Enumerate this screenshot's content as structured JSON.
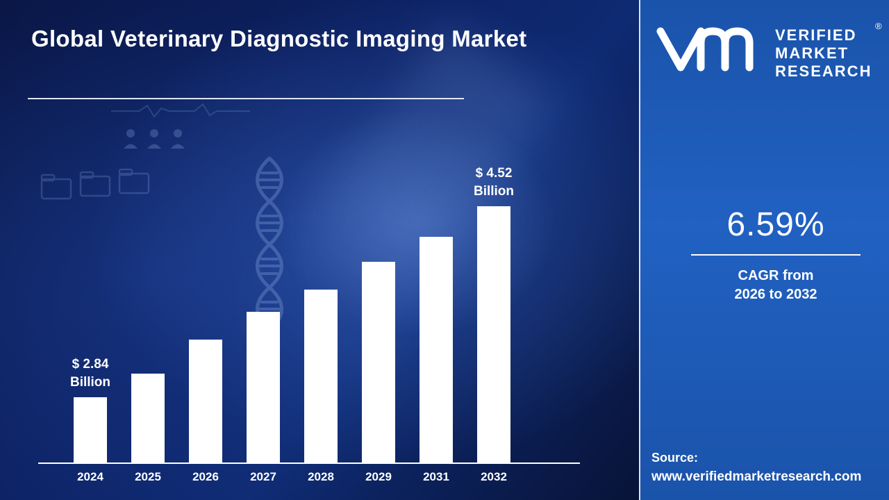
{
  "title": "Global Veterinary Diagnostic Imaging Market",
  "brand": {
    "line1": "VERIFIED",
    "line2": "MARKET",
    "line3": "RESEARCH",
    "registered": "®"
  },
  "stats": {
    "cagr": "6.59%",
    "caption_line1": "CAGR from",
    "caption_line2": "2026 to 2032"
  },
  "source": {
    "label": "Source:",
    "url": "www.verifiedmarketresearch.com"
  },
  "chart_data": {
    "type": "bar",
    "title": "Global Veterinary Diagnostic Imaging Market",
    "categories": [
      "2024",
      "2025",
      "2026",
      "2027",
      "2028",
      "2029",
      "2031",
      "2032"
    ],
    "values": [
      2.84,
      3.05,
      3.35,
      3.59,
      3.79,
      4.03,
      4.25,
      4.52
    ],
    "unit": "USD Billion",
    "first_bar_label": {
      "value": "$ 2.84",
      "unit": "Billion"
    },
    "last_bar_label": {
      "value": "$ 4.52",
      "unit": "Billion"
    },
    "ylim": [
      2.27,
      4.72
    ],
    "xlabel": "",
    "ylabel": "",
    "grid": false,
    "legend": false,
    "bar_color": "#ffffff"
  },
  "colors": {
    "left_background": "#0c1f5e",
    "right_panel": "#1e5cb8",
    "bar": "#ffffff",
    "text": "#ffffff"
  }
}
